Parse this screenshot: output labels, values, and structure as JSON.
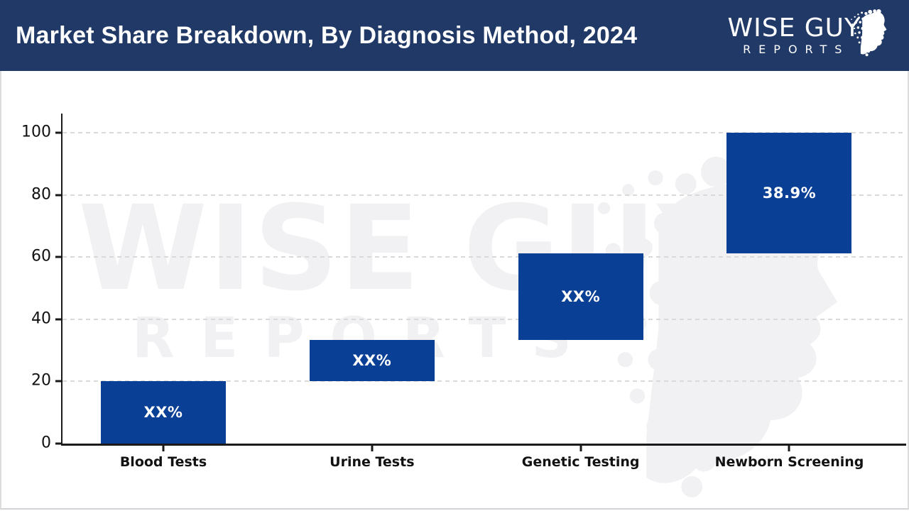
{
  "header": {
    "title": "Market Share Breakdown, By Diagnosis Method, 2024",
    "logo": {
      "line1": "WISE GUY",
      "line2": "REPORTS",
      "face_icon": "dotted-face-profile"
    }
  },
  "watermark": {
    "line1": "WISE GUY",
    "line2": "REPORTS",
    "face_icon": "dotted-face-profile"
  },
  "colors": {
    "header_bg": "#213966",
    "bar_blue": "#0a3f96",
    "grid": "#d9d9d9",
    "axis": "#1a1a1a",
    "bar_label_text": "#ffffff",
    "watermark": "#f1f1f3"
  },
  "chart_data": {
    "type": "bar",
    "subtype": "floating-waterfall",
    "title": "Market Share Breakdown, By Diagnosis Method, 2024",
    "categories": [
      "Blood Tests",
      "Urine Tests",
      "Genetic Testing",
      "Newborn Screening"
    ],
    "segments": [
      {
        "category": "Blood Tests",
        "start": 0,
        "end": 20,
        "value": 20,
        "label": "XX%"
      },
      {
        "category": "Urine Tests",
        "start": 20,
        "end": 33.3,
        "value": 13.3,
        "label": "XX%"
      },
      {
        "category": "Genetic Testing",
        "start": 33.3,
        "end": 61.1,
        "value": 27.8,
        "label": "XX%"
      },
      {
        "category": "Newborn Screening",
        "start": 61.1,
        "end": 100,
        "value": 38.9,
        "label": "38.9%"
      }
    ],
    "yticks": [
      0,
      20,
      40,
      60,
      80,
      100
    ],
    "ylim": [
      0,
      100
    ],
    "xlabel": "",
    "ylabel": "",
    "unit": "%",
    "grid": "horizontal-dashed",
    "legend": "none",
    "bar_color": "#0a3f96"
  }
}
